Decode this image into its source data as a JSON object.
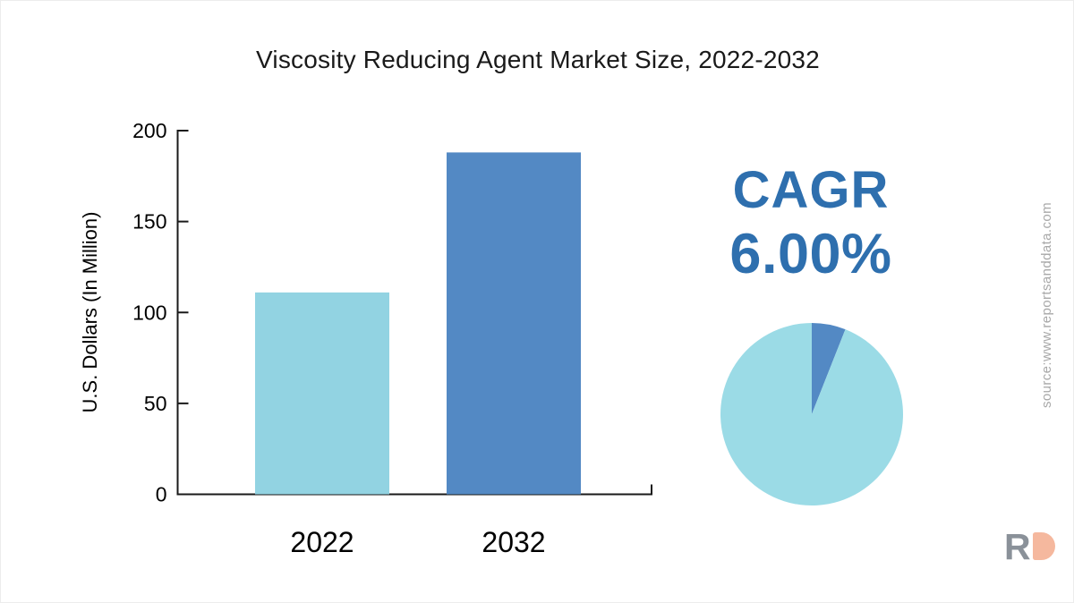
{
  "page": {
    "background": "#ffffff",
    "border_color": "#ececec"
  },
  "title": "Viscosity Reducing Agent Market Size, 2022-2032",
  "cagr": {
    "label": "CAGR",
    "value": "6.00%",
    "color": "#2e6fae"
  },
  "source": {
    "text": "source:www.reportsanddata.com",
    "color": "#a8a8a8"
  },
  "logo": {
    "letter": "R",
    "letter_color": "#8a9199",
    "shape_color": "#f5b89e"
  },
  "chart_data": [
    {
      "type": "bar",
      "title": "Viscosity Reducing Agent Market Size, 2022-2032",
      "categories": [
        "2022",
        "2032"
      ],
      "values": [
        111,
        188
      ],
      "bar_colors": [
        "#92d3e2",
        "#5389c4"
      ],
      "xlabel": "",
      "ylabel": "U.S. Dollars (In Million)",
      "ylim": [
        0,
        200
      ],
      "yticks": [
        0,
        50,
        100,
        150,
        200
      ],
      "grid": false,
      "axis_color": "#1a1a1a",
      "tick_label_color": "#000000"
    },
    {
      "type": "pie",
      "label": "CAGR 6.00% share",
      "values": [
        6,
        94
      ],
      "colors": [
        "#5389c4",
        "#9bdbe6"
      ],
      "start_angle_deg": 0,
      "direction": "clockwise"
    }
  ]
}
